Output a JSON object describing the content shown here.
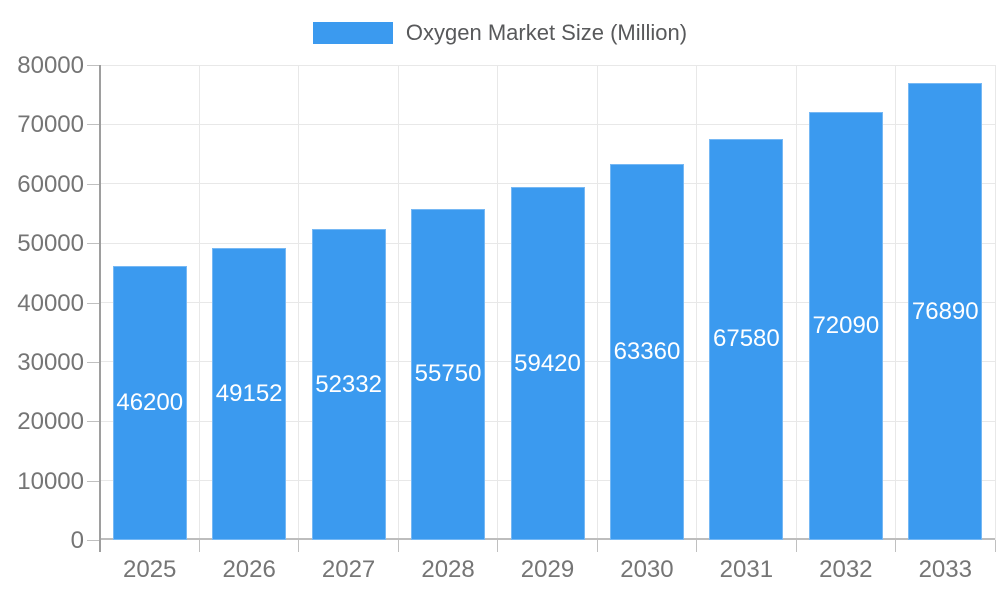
{
  "legend": {
    "label": "Oxygen Market Size (Million)"
  },
  "colors": {
    "bar": "#3B9AEF",
    "bar_label_text": "#FFFFFF",
    "axis_text": "#757575",
    "legend_text": "#58595B",
    "grid_line": "#E8E8E8",
    "axis_line": "#9E9E9E",
    "tick_line": "#C0C0C0",
    "background": "#FFFFFF"
  },
  "chart_data": {
    "type": "bar",
    "title": "",
    "xlabel": "",
    "ylabel": "",
    "categories": [
      "2025",
      "2026",
      "2027",
      "2028",
      "2029",
      "2030",
      "2031",
      "2032",
      "2033"
    ],
    "series": [
      {
        "name": "Oxygen Market Size (Million)",
        "values": [
          46200,
          49152,
          52332,
          55750,
          59420,
          63360,
          67580,
          72090,
          76890
        ]
      }
    ],
    "ylim": [
      0,
      80000
    ],
    "yticks": [
      0,
      10000,
      20000,
      30000,
      40000,
      50000,
      60000,
      70000,
      80000
    ],
    "grid": true,
    "legend_position": "top",
    "bar_label_position": "inside-center"
  }
}
